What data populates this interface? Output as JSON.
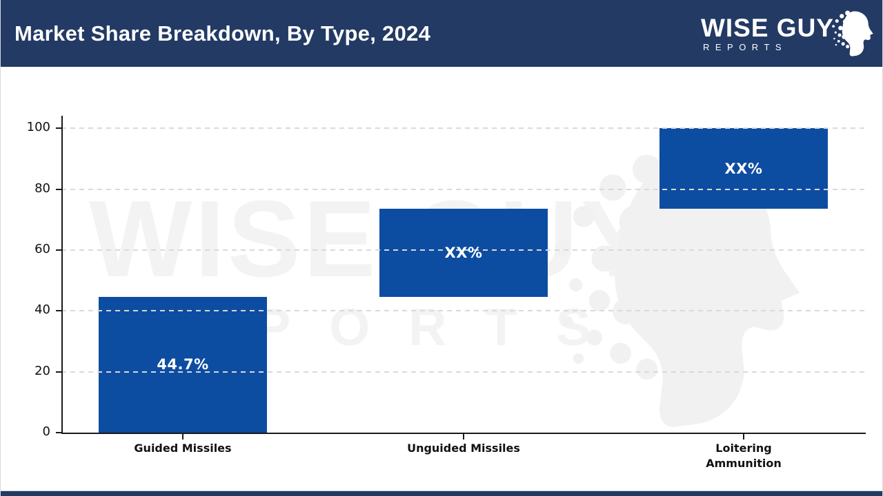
{
  "header": {
    "title": "Market Share Breakdown, By Type, 2024",
    "bg_color": "#223a64",
    "title_color": "#ffffff"
  },
  "logo": {
    "line1": "WISE GUY",
    "line2": "REPORTS",
    "head_icon": "dotted-face-profile"
  },
  "watermark": {
    "line1": "WISE GUY",
    "line2": "REPORTS",
    "head_icon": "dotted-face-profile",
    "color": "#f3f3f3"
  },
  "chart_data": {
    "type": "bar",
    "subtype": "waterfall-stacked-percentage",
    "title": "Market Share Breakdown, By Type, 2024",
    "categories": [
      "Guided Missiles",
      "Unguided Missiles",
      "Loitering Ammunition"
    ],
    "segments": [
      {
        "category": "Guided Missiles",
        "start": 0,
        "end": 44.7,
        "label": "44.7%"
      },
      {
        "category": "Unguided Missiles",
        "start": 44.7,
        "end": 73.5,
        "label": "XX%"
      },
      {
        "category": "Loitering Ammunition",
        "start": 73.5,
        "end": 100,
        "label": "XX%"
      }
    ],
    "xlabel": "",
    "ylabel": "",
    "yticks": [
      0,
      20,
      40,
      60,
      80,
      100
    ],
    "ylim": [
      0,
      104
    ],
    "grid": "horizontal-dashed",
    "grid_color": "#d9d9d9",
    "axis_color": "#1a1a1a",
    "tick_label_color": "#111111",
    "bar_color": "#0d4da1",
    "bar_label_color": "#ffffff",
    "legend": "none"
  }
}
